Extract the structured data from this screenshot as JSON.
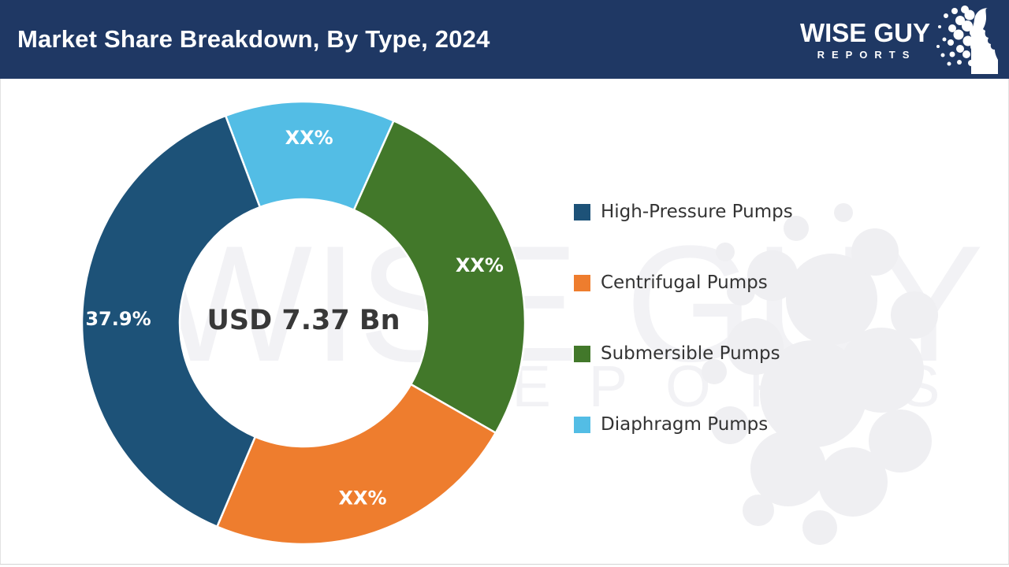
{
  "header": {
    "title": "Market Share Breakdown, By Type, 2024",
    "bg_color": "#1f3864",
    "logo": {
      "line1": "WISE GUY",
      "line2": "REPORTS"
    }
  },
  "watermark": {
    "line1": "WISE GUY",
    "line2": "REPORTS"
  },
  "chart_data": {
    "type": "pie",
    "subtype": "donut",
    "title": "Market Share Breakdown, By Type, 2024",
    "center_label": "USD 7.37 Bn",
    "start_angle_deg": -20.6,
    "draw_order": "clockwise from top",
    "note": "Only the High-Pressure Pumps share is printed (37.9%); other slice values are masked as XX% and estimated from arc angles.",
    "slices": [
      {
        "label": "Diaphragm Pumps",
        "display_label": "XX%",
        "value": 12.4,
        "color": "#53bde5"
      },
      {
        "label": "Submersible Pumps",
        "display_label": "XX%",
        "value": 26.6,
        "color": "#42782a"
      },
      {
        "label": "Centrifugal Pumps",
        "display_label": "XX%",
        "value": 23.1,
        "color": "#ee7d2e"
      },
      {
        "label": "High-Pressure Pumps",
        "display_label": "37.9%",
        "value": 37.9,
        "color": "#1d5278"
      }
    ]
  },
  "legend": {
    "items": [
      {
        "label": "High-Pressure Pumps",
        "color": "#1d5278"
      },
      {
        "label": "Centrifugal Pumps",
        "color": "#ee7d2e"
      },
      {
        "label": "Submersible Pumps",
        "color": "#42782a"
      },
      {
        "label": "Diaphragm Pumps",
        "color": "#53bde5"
      }
    ]
  }
}
